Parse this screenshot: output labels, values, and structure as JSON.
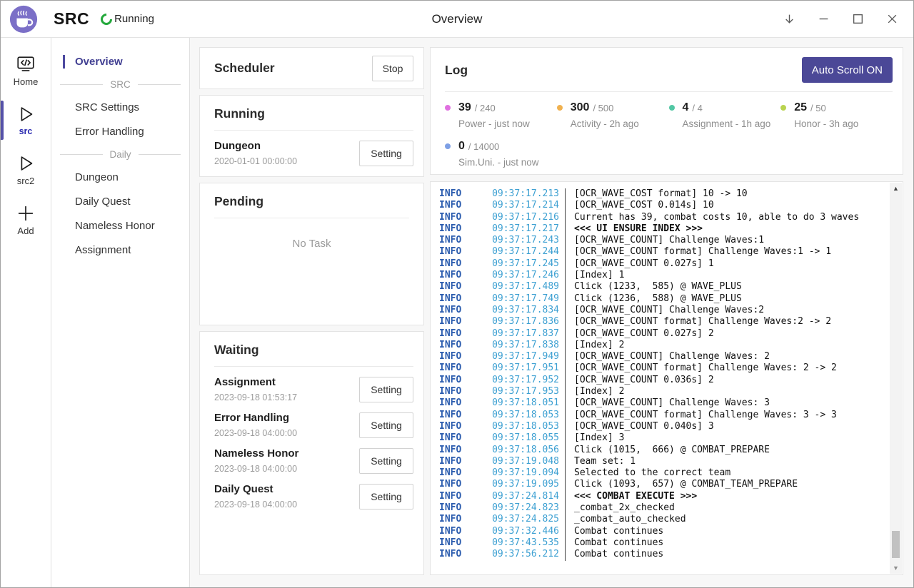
{
  "colors": {
    "accent": "#4b4897",
    "status_green": "#23a83b",
    "log_level": "#2b5cae",
    "log_time": "#3da0d2"
  },
  "titlebar": {
    "app_name": "SRC",
    "status": "Running",
    "page_title": "Overview",
    "controls": [
      "arrow-down",
      "minimize",
      "maximize",
      "close"
    ]
  },
  "rail": {
    "items": [
      {
        "label": "Home",
        "icon": "code-monitor",
        "active": false
      },
      {
        "label": "src",
        "icon": "play",
        "active": true
      },
      {
        "label": "src2",
        "icon": "play",
        "active": false
      },
      {
        "label": "Add",
        "icon": "plus",
        "active": false
      }
    ]
  },
  "menu": {
    "entries": [
      {
        "type": "item",
        "label": "Overview",
        "active": true
      },
      {
        "type": "group",
        "label": "SRC"
      },
      {
        "type": "item",
        "label": "SRC Settings",
        "active": false
      },
      {
        "type": "item",
        "label": "Error Handling",
        "active": false
      },
      {
        "type": "group",
        "label": "Daily"
      },
      {
        "type": "item",
        "label": "Dungeon",
        "active": false
      },
      {
        "type": "item",
        "label": "Daily Quest",
        "active": false
      },
      {
        "type": "item",
        "label": "Nameless Honor",
        "active": false
      },
      {
        "type": "item",
        "label": "Assignment",
        "active": false
      }
    ]
  },
  "scheduler": {
    "title": "Scheduler",
    "stop_label": "Stop"
  },
  "running": {
    "title": "Running",
    "setting_label": "Setting",
    "task": {
      "name": "Dungeon",
      "time": "2020-01-01 00:00:00"
    }
  },
  "pending": {
    "title": "Pending",
    "empty_text": "No Task"
  },
  "waiting": {
    "title": "Waiting",
    "setting_label": "Setting",
    "tasks": [
      {
        "name": "Assignment",
        "time": "2023-09-18 01:53:17"
      },
      {
        "name": "Error Handling",
        "time": "2023-09-18 04:00:00"
      },
      {
        "name": "Nameless Honor",
        "time": "2023-09-18 04:00:00"
      },
      {
        "name": "Daily Quest",
        "time": "2023-09-18 04:00:00"
      }
    ]
  },
  "log": {
    "title": "Log",
    "auto_scroll_label": "Auto Scroll ON",
    "stats": [
      {
        "value": "39",
        "total": "240",
        "caption": "Power - just now",
        "dot_color": "#e070e0"
      },
      {
        "value": "300",
        "total": "500",
        "caption": "Activity - 2h ago",
        "dot_color": "#f0b14f"
      },
      {
        "value": "4",
        "total": "4",
        "caption": "Assignment - 1h ago",
        "dot_color": "#52c7a4"
      },
      {
        "value": "25",
        "total": "50",
        "caption": "Honor - 3h ago",
        "dot_color": "#b9d34f"
      },
      {
        "value": "0",
        "total": "14000",
        "caption": "Sim.Uni. - just now",
        "dot_color": "#7d9fe5"
      }
    ],
    "lines": [
      {
        "level": "INFO",
        "time": "09:37:17.213",
        "msg": "[OCR_WAVE_COST format] 10 -> 10",
        "bold": false
      },
      {
        "level": "INFO",
        "time": "09:37:17.214",
        "msg": "[OCR_WAVE_COST 0.014s] 10",
        "bold": false
      },
      {
        "level": "INFO",
        "time": "09:37:17.216",
        "msg": "Current has 39, combat costs 10, able to do 3 waves",
        "bold": false
      },
      {
        "level": "INFO",
        "time": "09:37:17.217",
        "msg": "<<< UI ENSURE INDEX >>>",
        "bold": true
      },
      {
        "level": "INFO",
        "time": "09:37:17.243",
        "msg": "[OCR_WAVE_COUNT] Challenge Waves:1",
        "bold": false
      },
      {
        "level": "INFO",
        "time": "09:37:17.244",
        "msg": "[OCR_WAVE_COUNT format] Challenge Waves:1 -> 1",
        "bold": false
      },
      {
        "level": "INFO",
        "time": "09:37:17.245",
        "msg": "[OCR_WAVE_COUNT 0.027s] 1",
        "bold": false
      },
      {
        "level": "INFO",
        "time": "09:37:17.246",
        "msg": "[Index] 1",
        "bold": false
      },
      {
        "level": "INFO",
        "time": "09:37:17.489",
        "msg": "Click (1233,  585) @ WAVE_PLUS",
        "bold": false
      },
      {
        "level": "INFO",
        "time": "09:37:17.749",
        "msg": "Click (1236,  588) @ WAVE_PLUS",
        "bold": false
      },
      {
        "level": "INFO",
        "time": "09:37:17.834",
        "msg": "[OCR_WAVE_COUNT] Challenge Waves:2",
        "bold": false
      },
      {
        "level": "INFO",
        "time": "09:37:17.836",
        "msg": "[OCR_WAVE_COUNT format] Challenge Waves:2 -> 2",
        "bold": false
      },
      {
        "level": "INFO",
        "time": "09:37:17.837",
        "msg": "[OCR_WAVE_COUNT 0.027s] 2",
        "bold": false
      },
      {
        "level": "INFO",
        "time": "09:37:17.838",
        "msg": "[Index] 2",
        "bold": false
      },
      {
        "level": "INFO",
        "time": "09:37:17.949",
        "msg": "[OCR_WAVE_COUNT] Challenge Waves: 2",
        "bold": false
      },
      {
        "level": "INFO",
        "time": "09:37:17.951",
        "msg": "[OCR_WAVE_COUNT format] Challenge Waves: 2 -> 2",
        "bold": false
      },
      {
        "level": "INFO",
        "time": "09:37:17.952",
        "msg": "[OCR_WAVE_COUNT 0.036s] 2",
        "bold": false
      },
      {
        "level": "INFO",
        "time": "09:37:17.953",
        "msg": "[Index] 2",
        "bold": false
      },
      {
        "level": "INFO",
        "time": "09:37:18.051",
        "msg": "[OCR_WAVE_COUNT] Challenge Waves: 3",
        "bold": false
      },
      {
        "level": "INFO",
        "time": "09:37:18.053",
        "msg": "[OCR_WAVE_COUNT format] Challenge Waves: 3 -> 3",
        "bold": false
      },
      {
        "level": "INFO",
        "time": "09:37:18.053",
        "msg": "[OCR_WAVE_COUNT 0.040s] 3",
        "bold": false
      },
      {
        "level": "INFO",
        "time": "09:37:18.055",
        "msg": "[Index] 3",
        "bold": false
      },
      {
        "level": "INFO",
        "time": "09:37:18.056",
        "msg": "Click (1015,  666) @ COMBAT_PREPARE",
        "bold": false
      },
      {
        "level": "INFO",
        "time": "09:37:19.048",
        "msg": "Team set: 1",
        "bold": false
      },
      {
        "level": "INFO",
        "time": "09:37:19.094",
        "msg": "Selected to the correct team",
        "bold": false
      },
      {
        "level": "INFO",
        "time": "09:37:19.095",
        "msg": "Click (1093,  657) @ COMBAT_TEAM_PREPARE",
        "bold": false
      },
      {
        "level": "INFO",
        "time": "09:37:24.814",
        "msg": "<<< COMBAT EXECUTE >>>",
        "bold": true
      },
      {
        "level": "INFO",
        "time": "09:37:24.823",
        "msg": "_combat_2x_checked",
        "bold": false
      },
      {
        "level": "INFO",
        "time": "09:37:24.825",
        "msg": "_combat_auto_checked",
        "bold": false
      },
      {
        "level": "INFO",
        "time": "09:37:32.446",
        "msg": "Combat continues",
        "bold": false
      },
      {
        "level": "INFO",
        "time": "09:37:43.535",
        "msg": "Combat continues",
        "bold": false
      },
      {
        "level": "INFO",
        "time": "09:37:56.212",
        "msg": "Combat continues",
        "bold": false
      }
    ]
  }
}
